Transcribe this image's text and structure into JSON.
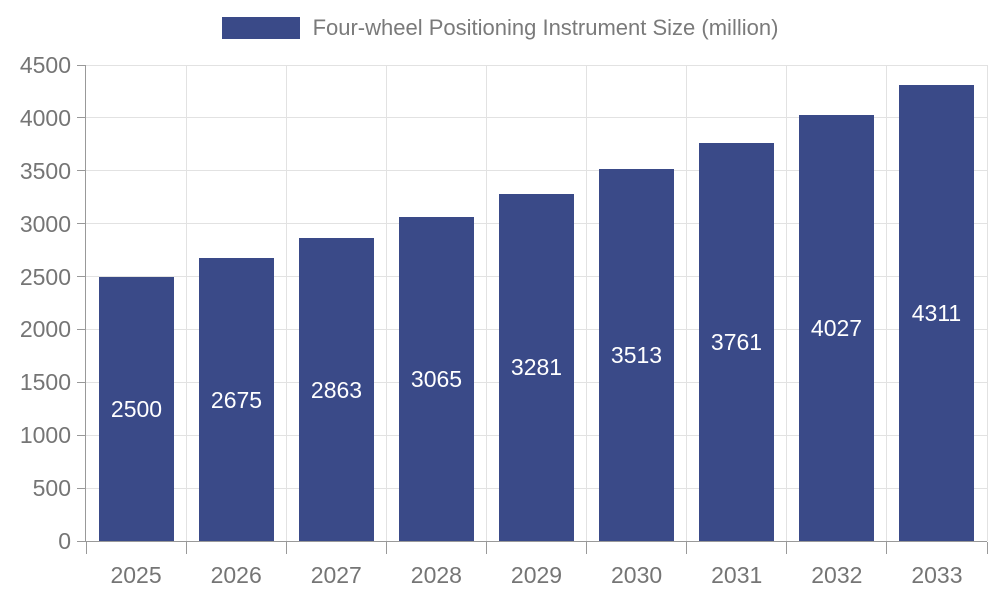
{
  "legend": {
    "label": "Four-wheel Positioning Instrument Size (million)"
  },
  "colors": {
    "bar": "#3A4A88",
    "grid_line": "#E2E2E2",
    "axis_line": "#999999",
    "axis_label": "#757575",
    "legend_text": "#7A7A7A",
    "bar_label": "#FFFFFF",
    "background": "#FFFFFF"
  },
  "chart_data": {
    "type": "bar",
    "title": "Four-wheel Positioning Instrument Size (million)",
    "series_name": "Four-wheel Positioning Instrument Size (million)",
    "categories": [
      "2025",
      "2026",
      "2027",
      "2028",
      "2029",
      "2030",
      "2031",
      "2032",
      "2033"
    ],
    "values": [
      2500,
      2675,
      2863,
      3065,
      3281,
      3513,
      3761,
      4027,
      4311
    ],
    "xlabel": "",
    "ylabel": "",
    "ylim": [
      0,
      4500
    ],
    "yticks": [
      0,
      500,
      1000,
      1500,
      2000,
      2500,
      3000,
      3500,
      4000,
      4500
    ],
    "grid": true,
    "legend_position": "top",
    "bar_labels": "inside-middle"
  }
}
